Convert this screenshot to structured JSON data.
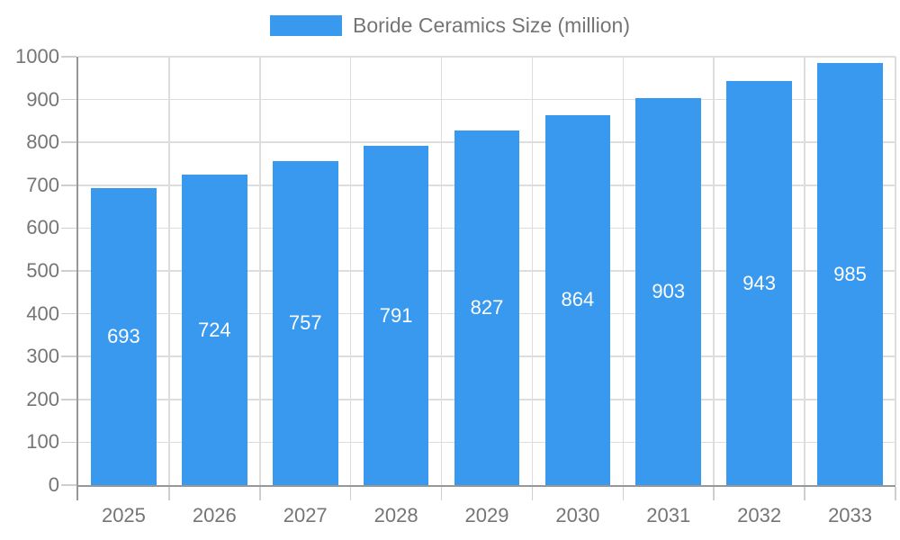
{
  "legend": {
    "label": "Boride Ceramics Size (million)"
  },
  "chart_data": {
    "type": "bar",
    "title": "Boride Ceramics Size (million)",
    "series_name": "Boride Ceramics Size (million)",
    "categories": [
      "2025",
      "2026",
      "2027",
      "2028",
      "2029",
      "2030",
      "2031",
      "2032",
      "2033"
    ],
    "values": [
      693,
      724,
      757,
      791,
      827,
      864,
      903,
      943,
      985
    ],
    "xlabel": "",
    "ylabel": "",
    "ylim": [
      0,
      1000
    ],
    "ytick_step": 100,
    "grid": true,
    "legend_position": "top",
    "bar_label_position": "center",
    "colors": {
      "bar": "#3899EE",
      "grid": "#DDDDDD",
      "tick": "#CFCFCF",
      "axis": "#979797",
      "text": "#757575",
      "bar_label": "#FFFFFF",
      "background": "#FFFFFF"
    }
  }
}
